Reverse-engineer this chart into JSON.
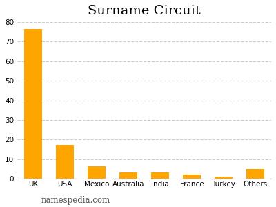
{
  "title": "Surname Circuit",
  "categories": [
    "UK",
    "USA",
    "Mexico",
    "Australia",
    "India",
    "France",
    "Turkey",
    "Others"
  ],
  "values": [
    76.5,
    17.5,
    6.5,
    3.2,
    3.1,
    2.2,
    1.2,
    5.2
  ],
  "bar_color": "#FFA500",
  "background_color": "#ffffff",
  "ylim": [
    0,
    80
  ],
  "yticks": [
    0,
    10,
    20,
    30,
    40,
    50,
    60,
    70,
    80
  ],
  "title_fontsize": 14,
  "tick_fontsize": 7.5,
  "footer_text": "namespedia.com",
  "footer_fontsize": 8.5,
  "grid_color": "#cccccc",
  "grid_linestyle": "--",
  "bar_width": 0.55
}
